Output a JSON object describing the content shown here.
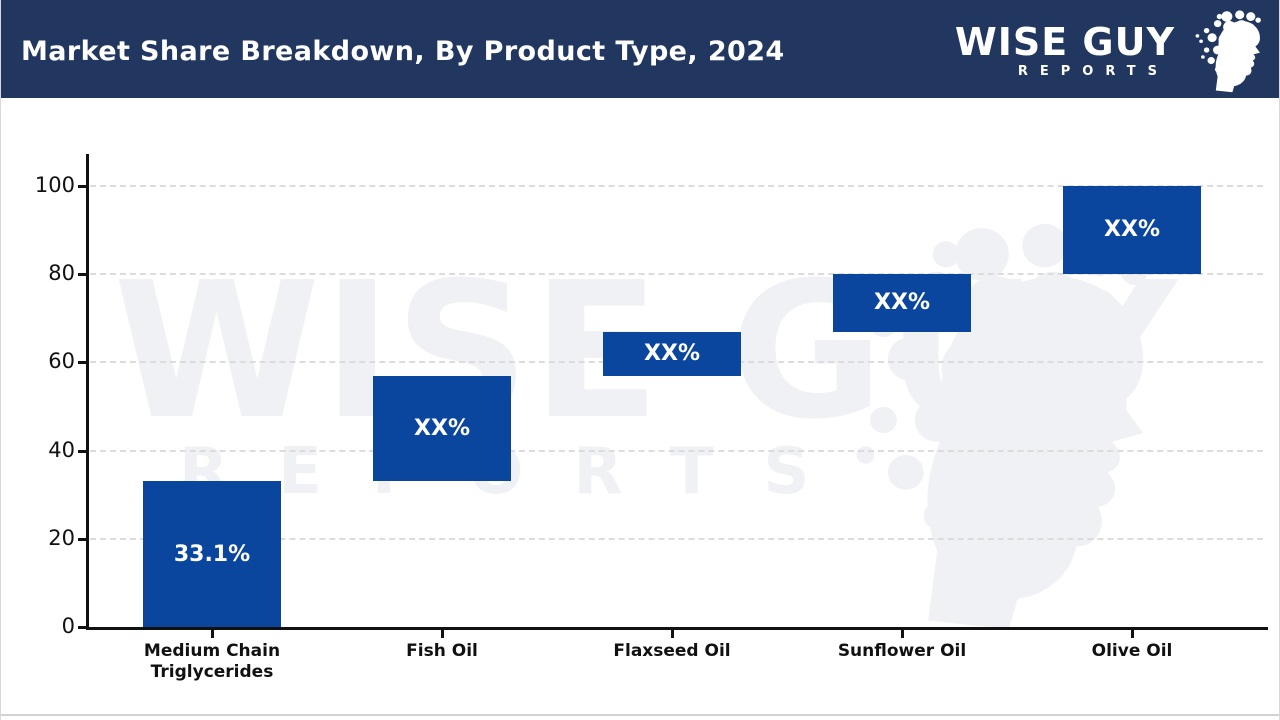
{
  "header": {
    "title": "Market Share Breakdown, By Product Type, 2024",
    "logo": {
      "wordmark": "WISE GUY",
      "reports": "REPORTS"
    }
  },
  "watermark": {
    "wordmark": "WISE GUY",
    "reports": "REPORTS"
  },
  "chart_data": {
    "type": "bar",
    "subtype": "waterfall",
    "title": "Market Share Breakdown, By Product Type, 2024",
    "unit": "%",
    "categories": [
      "Medium Chain\nTriglycerides",
      "Fish Oil",
      "Flaxseed Oil",
      "Sunflower Oil",
      "Olive Oil"
    ],
    "series": [
      {
        "category": "Medium Chain Triglycerides",
        "start": 0,
        "end": 33.1,
        "value_label": "33.1%"
      },
      {
        "category": "Fish Oil",
        "start": 33.1,
        "end": 57.0,
        "value_label": "XX%"
      },
      {
        "category": "Flaxseed Oil",
        "start": 57.0,
        "end": 67.0,
        "value_label": "XX%"
      },
      {
        "category": "Sunflower Oil",
        "start": 67.0,
        "end": 80.1,
        "value_label": "XX%"
      },
      {
        "category": "Olive Oil",
        "start": 80.1,
        "end": 100,
        "value_label": "XX%"
      }
    ],
    "yticks": [
      0,
      20,
      40,
      60,
      80,
      100
    ],
    "ylim": [
      0,
      107
    ],
    "xlabel": "",
    "ylabel": "",
    "grid": "horizontal-dashed",
    "legend": "none",
    "bar_color": "#0a459e",
    "bar_label_color": "#ffffff"
  },
  "colors": {
    "header_bg": "#21375f",
    "bar": "#0a459e",
    "grid": "#dcdcdc",
    "axis": "#111111",
    "watermark": "#f0f1f4",
    "title_text": "#ffffff"
  }
}
